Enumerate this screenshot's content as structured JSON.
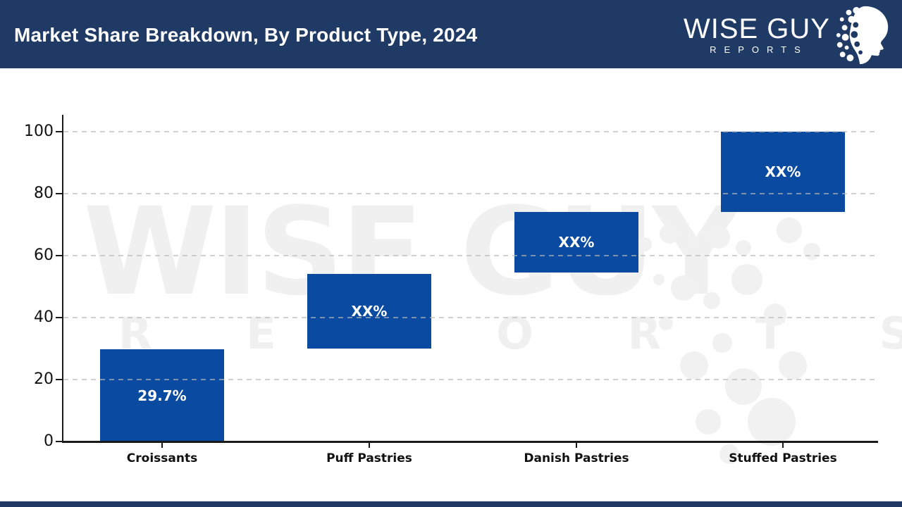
{
  "header": {
    "title": "Market Share Breakdown, By Product Type, 2024",
    "logo": {
      "line1": "WISE GUY",
      "line2": "REPORTS"
    }
  },
  "watermark": {
    "line1": "WISE GUY",
    "line2": "R E P O R T S"
  },
  "chart_data": {
    "type": "bar",
    "subtype": "waterfall",
    "title": "Market Share Breakdown, By Product Type, 2024",
    "categories": [
      "Croissants",
      "Puff Pastries",
      "Danish Pastries",
      "Stuffed Pastries"
    ],
    "series": [
      {
        "name": "Market Share",
        "segments": [
          {
            "category": "Croissants",
            "start": 0,
            "end": 29.7,
            "label": "29.7%"
          },
          {
            "category": "Puff Pastries",
            "start": 30,
            "end": 54,
            "label": "XX%"
          },
          {
            "category": "Danish Pastries",
            "start": 54.5,
            "end": 74,
            "label": "XX%"
          },
          {
            "category": "Stuffed Pastries",
            "start": 74,
            "end": 100,
            "label": "XX%"
          }
        ]
      }
    ],
    "ylim": [
      0,
      105
    ],
    "yticks": [
      0,
      20,
      40,
      60,
      80,
      100
    ],
    "xlabel": "",
    "ylabel": "",
    "grid": "horizontal-dashed",
    "legend": "none",
    "bar_color": "#0b4aa1",
    "bar_label_color": "#ffffff"
  },
  "colors": {
    "header_bg": "#203a66",
    "footer_bg": "#203a66",
    "bar": "#0b4aa1",
    "grid": "#b9b9b9",
    "axis": "#1a1a1a",
    "watermark": "#f0f0f0"
  }
}
